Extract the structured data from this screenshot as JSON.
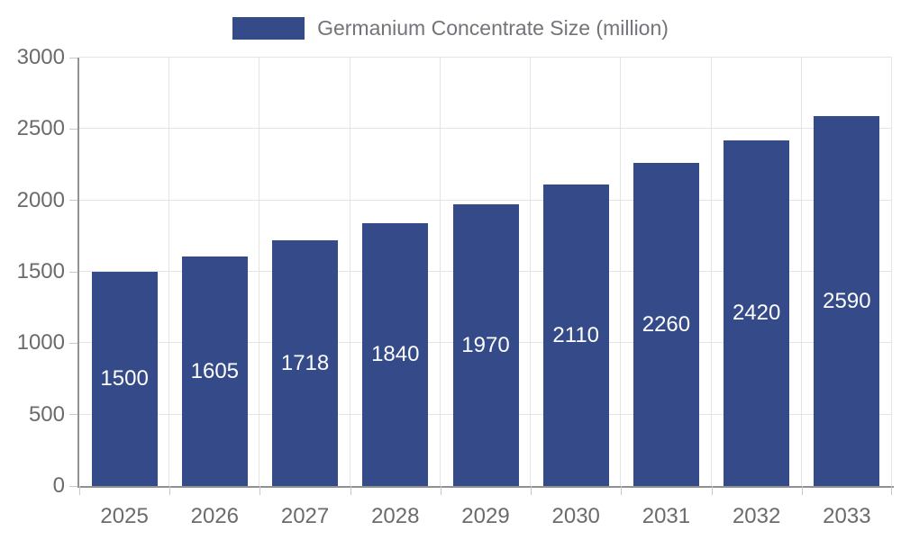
{
  "legend": {
    "label": "Germanium Concentrate Size (million)"
  },
  "chart_data": {
    "type": "bar",
    "title": "Germanium Concentrate Size (million)",
    "categories": [
      "2025",
      "2026",
      "2027",
      "2028",
      "2029",
      "2030",
      "2031",
      "2032",
      "2033"
    ],
    "values": [
      1500,
      1605,
      1718,
      1840,
      1970,
      2110,
      2260,
      2420,
      2590
    ],
    "xlabel": "",
    "ylabel": "",
    "ylim": [
      0,
      3000
    ],
    "yticks": [
      0,
      500,
      1000,
      1500,
      2000,
      2500,
      3000
    ],
    "grid": true,
    "legend_position": "top",
    "bar_color": "#354a89",
    "value_label_color": "#ffffff",
    "axis_label_color": "#6b6b6b",
    "legend_text_color": "#71757a",
    "gridline_color": "#e4e4e4",
    "axis_line_color": "#919191"
  }
}
